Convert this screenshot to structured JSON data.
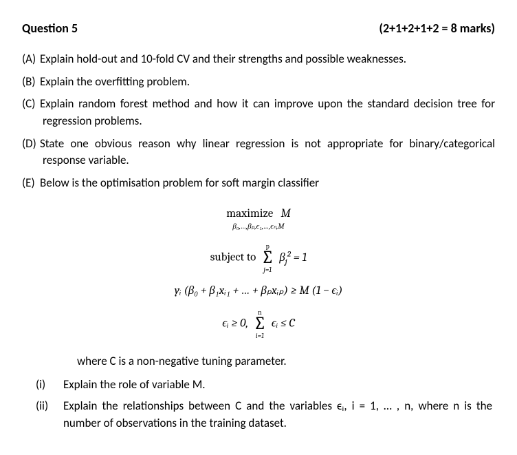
{
  "header": {
    "question": "Question 5",
    "marks": "(2+1+2+1+2 = 8 marks)"
  },
  "parts": {
    "A": {
      "label": "(A)",
      "text": "Explain hold-out and 10-fold CV and their strengths and possible weaknesses."
    },
    "B": {
      "label": "(B)",
      "text": "Explain the overfitting problem."
    },
    "C": {
      "label": "(C)",
      "text": "Explain random forest method and how it can improve upon the standard decision tree for regression problems."
    },
    "D": {
      "label": "(D)",
      "text": "State one obvious reason why linear regression is not appropriate for binary/categorical response variable."
    },
    "E": {
      "label": "(E)",
      "text": "Below is the optimisation problem for soft margin classifier"
    }
  },
  "math": {
    "maximize": "maximize",
    "max_sub": "β₀,…,βₚ,ϵ₁,…,ϵₙ,M",
    "M": "M",
    "subject_to": "subject to",
    "sum1_top": "p",
    "sum1_bot": "j=1",
    "beta_sq": "βⱼ² = 1",
    "line2_left": "yᵢ (β₀ + β₁xᵢ₁ + … + βₚxᵢₚ) ≥ M (1 − ϵᵢ)",
    "line3_part1": "ϵᵢ ≥ 0,",
    "sum2_top": "n",
    "sum2_bot": "i=1",
    "line3_part2": "ϵᵢ ≤ C",
    "where": "where C is a non-negative tuning parameter."
  },
  "sub": {
    "i": {
      "label": "(i)",
      "text": "Explain the role of variable M."
    },
    "ii": {
      "label": "(ii)",
      "text": "Explain the relationships between C and the variables ϵᵢ, i = 1, … , n, where n is the number of observations in the training dataset."
    }
  }
}
